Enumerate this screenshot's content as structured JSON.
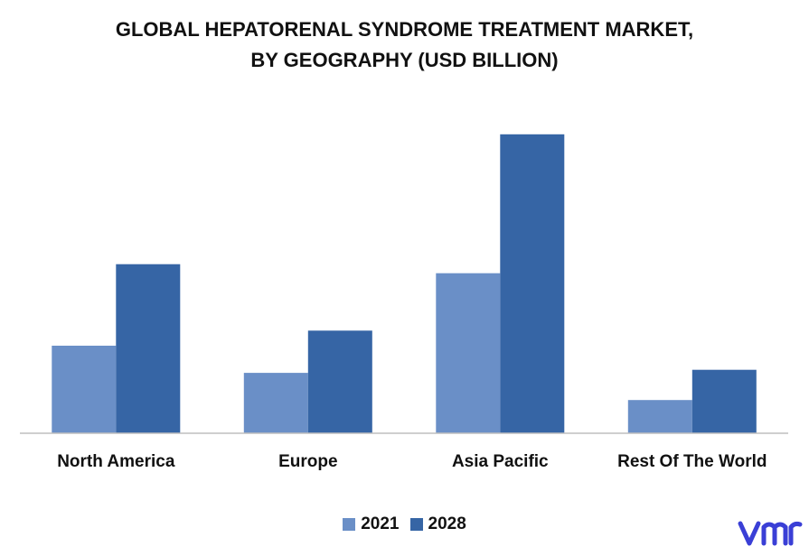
{
  "chart_data": {
    "type": "bar",
    "title_line1": "GLOBAL HEPATORENAL SYNDROME TREATMENT MARKET,",
    "title_line2": "BY GEOGRAPHY (USD BILLION)",
    "xlabel": "",
    "ylabel": "",
    "categories": [
      "North America",
      "Europe",
      "Asia Pacific",
      "Rest Of The World"
    ],
    "series": [
      {
        "name": "2021",
        "values": [
          0.29,
          0.2,
          0.53,
          0.11
        ],
        "color": "#6a8fc7"
      },
      {
        "name": "2028",
        "values": [
          0.56,
          0.34,
          0.99,
          0.21
        ],
        "color": "#3665a5"
      }
    ],
    "ylim": [
      0,
      1.1
    ],
    "grid": false,
    "legend_position": "bottom",
    "logo_text": "vmr",
    "logo_color": "#3a3fd6"
  }
}
